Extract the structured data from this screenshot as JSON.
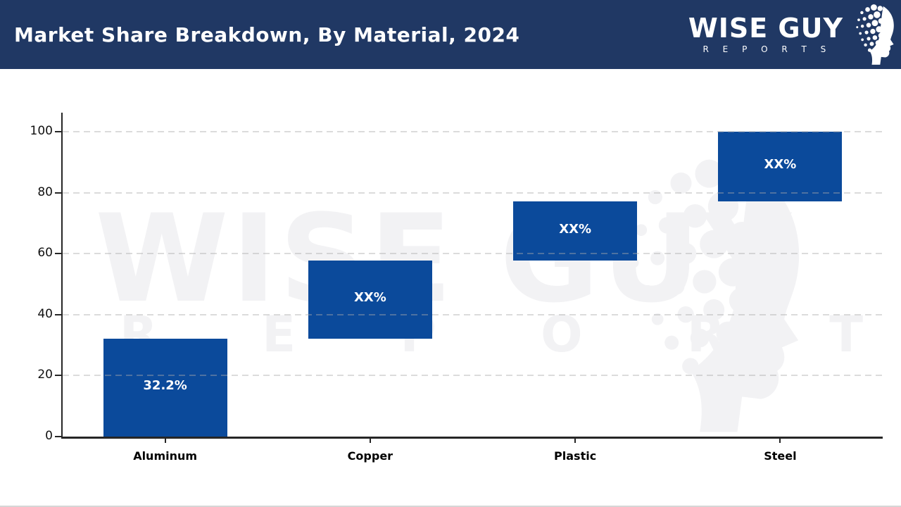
{
  "header": {
    "title": "Market Share Breakdown, By Material, 2024",
    "bg_color": "#203864",
    "logo": {
      "primary": "WISE GUY",
      "secondary": "R E P O R T S"
    }
  },
  "watermark": {
    "primary": "WISE GUY",
    "secondary": "R E P O R T S"
  },
  "chart_data": {
    "type": "bar",
    "subtype": "waterfall",
    "title": "Market Share Breakdown, By Material, 2024",
    "categories": [
      "Aluminum",
      "Copper",
      "Plastic",
      "Steel"
    ],
    "segments": [
      {
        "category": "Aluminum",
        "start": 0,
        "end": 32.2,
        "label": "32.2%"
      },
      {
        "category": "Copper",
        "start": 32.2,
        "end": 57.8,
        "label": "XX%"
      },
      {
        "category": "Plastic",
        "start": 57.8,
        "end": 77.2,
        "label": "XX%"
      },
      {
        "category": "Steel",
        "start": 77.2,
        "end": 100,
        "label": "XX%"
      }
    ],
    "xlabel": "",
    "ylabel": "",
    "ylim": [
      0,
      100
    ],
    "yticks": [
      0,
      20,
      40,
      60,
      80,
      100
    ],
    "grid": "horizontal-dashed",
    "legend": "none",
    "bar_color": "#0b4a9b",
    "bar_label_color": "#ffffff",
    "axis_color": "#262626"
  }
}
